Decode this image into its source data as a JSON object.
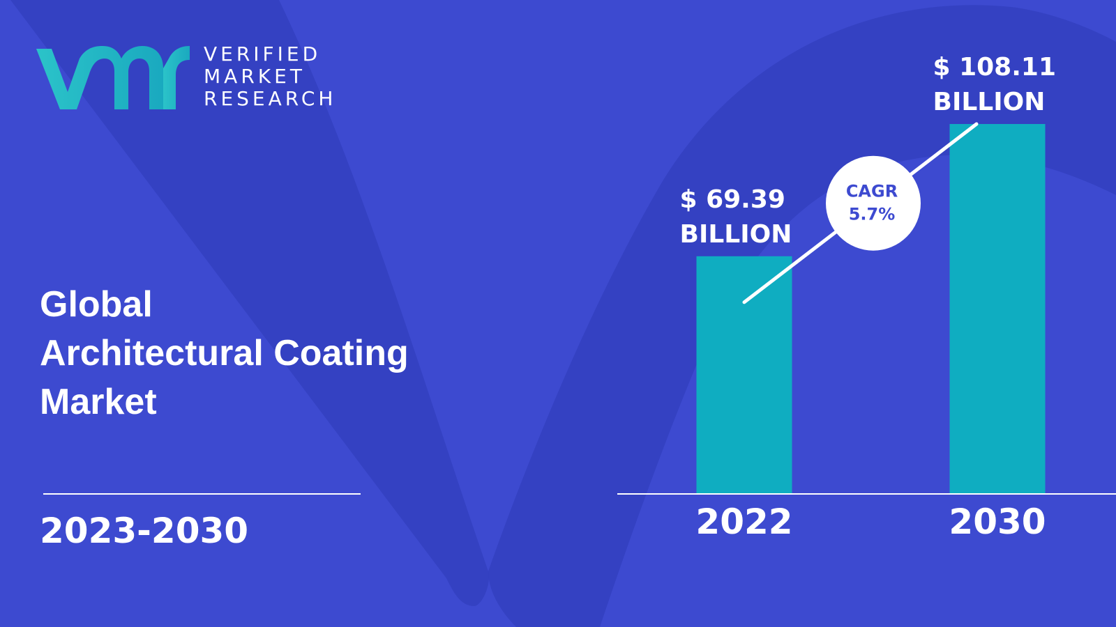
{
  "logo": {
    "line1": "VERIFIED",
    "line2": "MARKET",
    "line3": "RESEARCH"
  },
  "title": {
    "line1": "Global",
    "line2": "Architectural Coating",
    "line3": "Market"
  },
  "period": "2023-2030",
  "colors": {
    "background": "#3d4ad0",
    "bar": "#0fadc1",
    "accent": "#1fb6c2",
    "text": "#ffffff",
    "cagr_text": "#3d4ad0"
  },
  "chart_data": {
    "type": "bar",
    "categories": [
      "2022",
      "2030"
    ],
    "values": [
      69.39,
      108.11
    ],
    "value_labels": [
      [
        "$ 69.39",
        "BILLION"
      ],
      [
        "$ 108.11",
        "BILLION"
      ]
    ],
    "annotation": {
      "line1": "CAGR",
      "line2": "5.7%"
    },
    "ylim": [
      0,
      108.11
    ]
  }
}
